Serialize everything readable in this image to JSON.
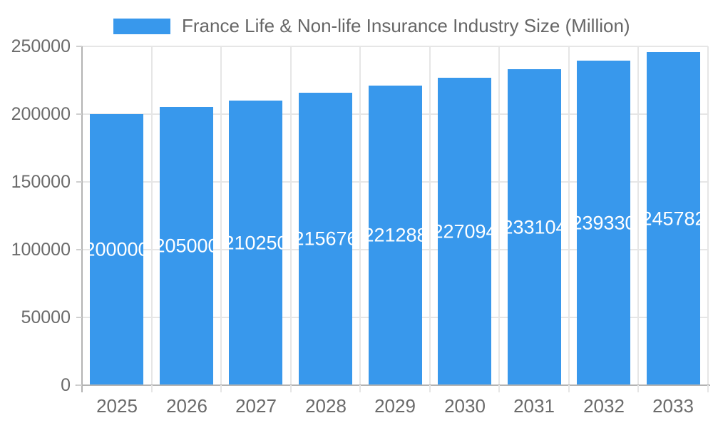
{
  "chart_data": {
    "type": "bar",
    "title": "France Life & Non-life Insurance Industry Size (Million)",
    "legend": {
      "position": "top",
      "label": "France Life & Non-life Insurance Industry Size (Million)"
    },
    "categories": [
      "2025",
      "2026",
      "2027",
      "2028",
      "2029",
      "2030",
      "2031",
      "2032",
      "2033"
    ],
    "series": [
      {
        "name": "France Life & Non-life Insurance Industry Size (Million)",
        "values": [
          200000,
          205000,
          210250,
          215676,
          221288,
          227094,
          233104,
          239330,
          245782
        ]
      }
    ],
    "bar_value_labels": [
      "200000",
      "205000",
      "210250",
      "215676",
      "221288",
      "227094",
      "233104",
      "239330",
      "245782"
    ],
    "xlabel": "",
    "ylabel": "",
    "ylim": [
      0,
      250000
    ],
    "y_ticks": [
      0,
      50000,
      100000,
      150000,
      200000,
      250000
    ],
    "y_tick_labels": [
      "0",
      "50000",
      "100000",
      "150000",
      "200000",
      "250000"
    ],
    "grid": true,
    "colors": {
      "bar": "#3898EC",
      "grid": "#E6E6E6",
      "axis": "#B3B3B3",
      "tick_text": "#6B6B6B",
      "title_text": "#666666",
      "bar_label": "#FFFFFF"
    }
  }
}
